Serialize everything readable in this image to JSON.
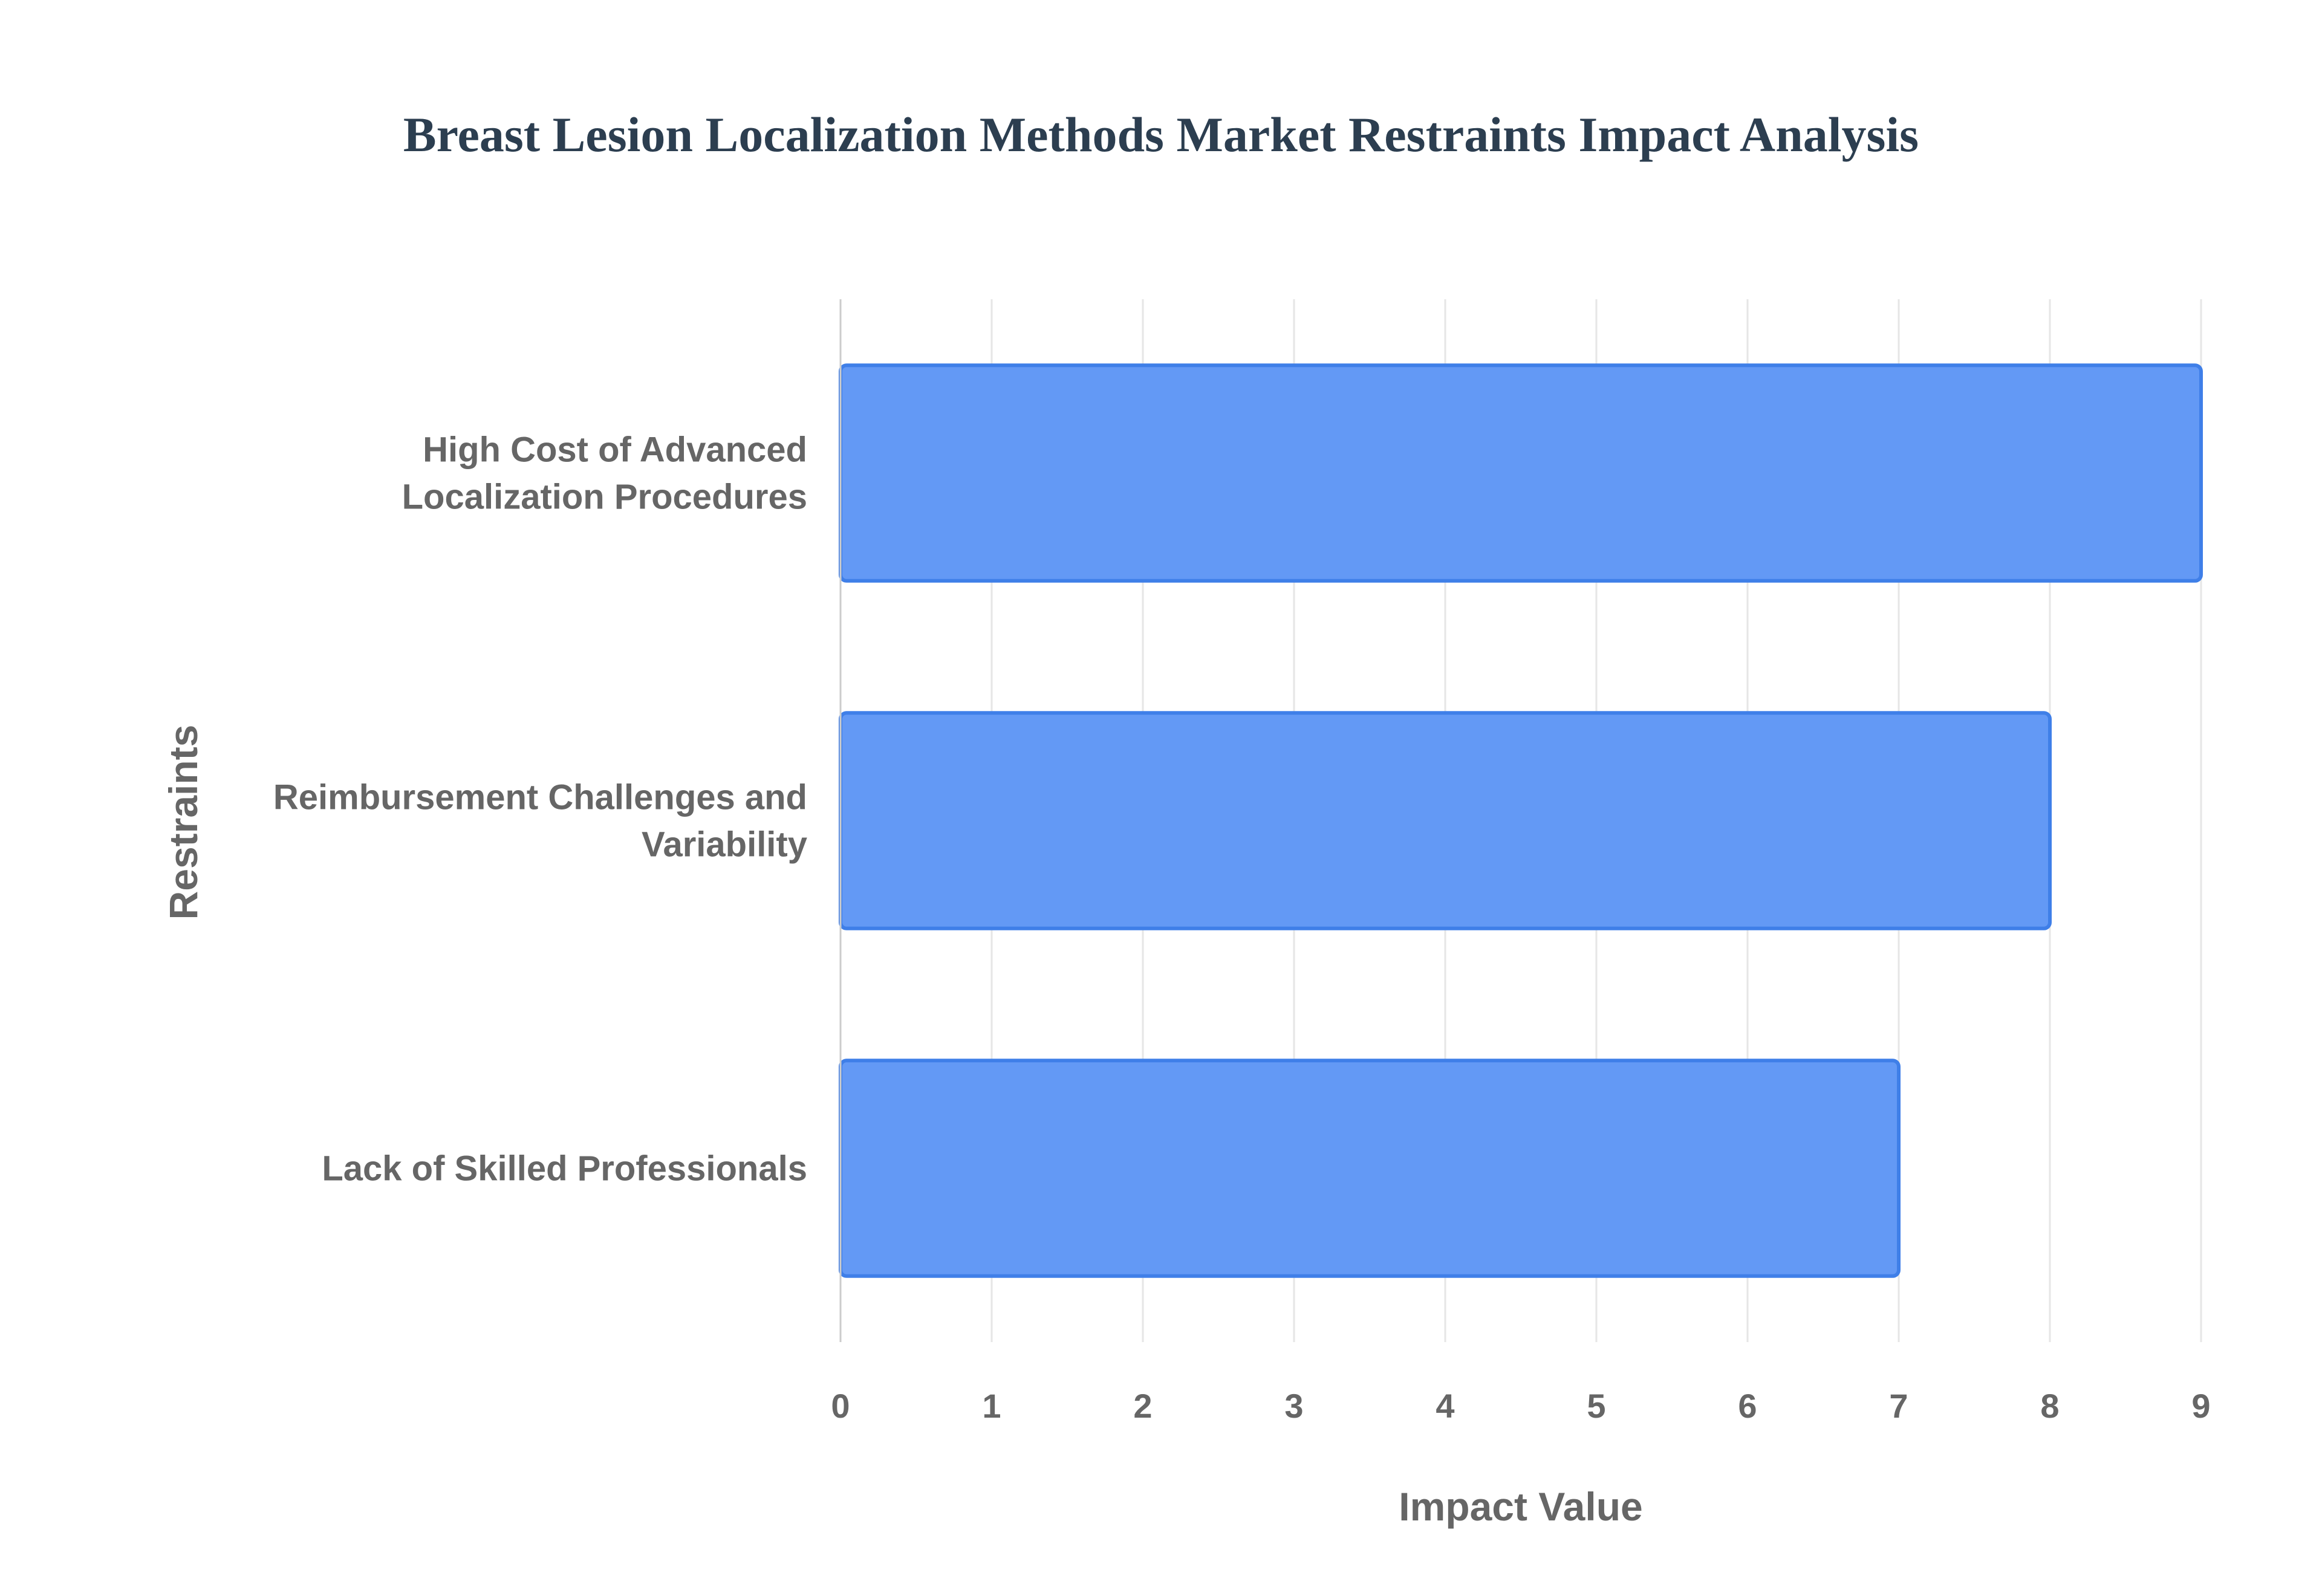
{
  "chart_data": {
    "type": "bar",
    "orientation": "horizontal",
    "title": "Breast Lesion Localization Methods Market Restraints Impact Analysis",
    "xlabel": "Impact Value",
    "ylabel": "Restraints",
    "categories": [
      [
        "High Cost of Advanced",
        "Localization Procedures"
      ],
      [
        "Reimbursement Challenges and",
        "Variability"
      ],
      [
        "Lack of Skilled Professionals"
      ]
    ],
    "values": [
      9,
      8,
      7
    ],
    "xlim": [
      0,
      9
    ],
    "xticks": [
      "0",
      "1",
      "2",
      "3",
      "4",
      "5",
      "6",
      "7",
      "8",
      "9"
    ],
    "grid": true,
    "bar_fill": "#6399f5",
    "bar_border": "#3f7fe8"
  }
}
